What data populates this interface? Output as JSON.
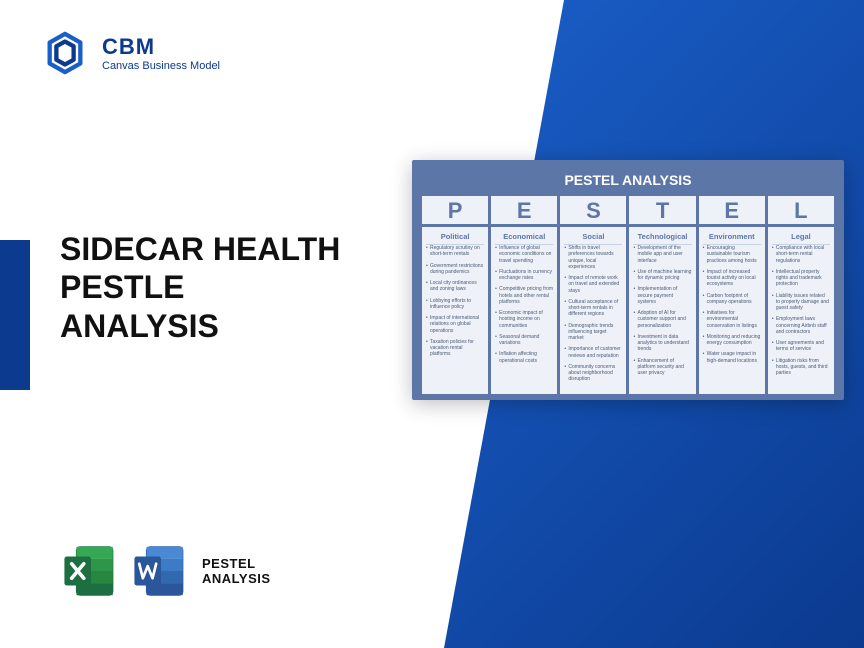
{
  "brand": {
    "name": "CBM",
    "tagline": "Canvas Business Model"
  },
  "title_lines": [
    "SIDECAR HEALTH",
    "PESTLE",
    "ANALYSIS"
  ],
  "footer": {
    "line1": "PESTEL",
    "line2": "ANALYSIS"
  },
  "card_title": "PESTEL ANALYSIS",
  "colors": {
    "brand_blue": "#0b3a8f",
    "card_bg": "#5c76a8",
    "cell_bg": "#eef2f8",
    "excel_green": "#1d6f42",
    "word_blue": "#2b579a"
  },
  "columns": [
    {
      "letter": "P",
      "name": "Political",
      "items": [
        "Regulatory scrutiny on short-term rentals",
        "Government restrictions during pandemics",
        "Local city ordinances and zoning laws",
        "Lobbying efforts to influence policy",
        "Impact of international relations on global operations",
        "Taxation policies for vacation rental platforms"
      ]
    },
    {
      "letter": "E",
      "name": "Economical",
      "items": [
        "Influence of global economic conditions on travel spending",
        "Fluctuations in currency exchange rates",
        "Competitive pricing from hotels and other rental platforms",
        "Economic impact of hosting income on communities",
        "Seasonal demand variations",
        "Inflation affecting operational costs"
      ]
    },
    {
      "letter": "S",
      "name": "Social",
      "items": [
        "Shifts in travel preferences towards unique, local experiences",
        "Impact of remote work on travel and extended stays",
        "Cultural acceptance of short-term rentals in different regions",
        "Demographic trends influencing target market",
        "Importance of customer reviews and reputation",
        "Community concerns about neighborhood disruption"
      ]
    },
    {
      "letter": "T",
      "name": "Technological",
      "items": [
        "Development of the mobile app and user interface",
        "Use of machine learning for dynamic pricing",
        "Implementation of secure payment systems",
        "Adoption of AI for customer support and personalization",
        "Investment in data analytics to understand trends",
        "Enhancement of platform security and user privacy"
      ]
    },
    {
      "letter": "E",
      "name": "Environment",
      "items": [
        "Encouraging sustainable tourism practices among hosts",
        "Impact of increased tourist activity on local ecosystems",
        "Carbon footprint of company operations",
        "Initiatives for environmental conservation in listings",
        "Monitoring and reducing energy consumption",
        "Water usage impact in high-demand locations"
      ]
    },
    {
      "letter": "L",
      "name": "Legal",
      "items": [
        "Compliance with local short-term rental regulations",
        "Intellectual property rights and trademark protection",
        "Liability issues related to property damage and guest safety",
        "Employment laws concerning Airbnb staff and contractors",
        "User agreements and terms of service",
        "Litigation risks from hosts, guests, and third parties"
      ]
    }
  ]
}
